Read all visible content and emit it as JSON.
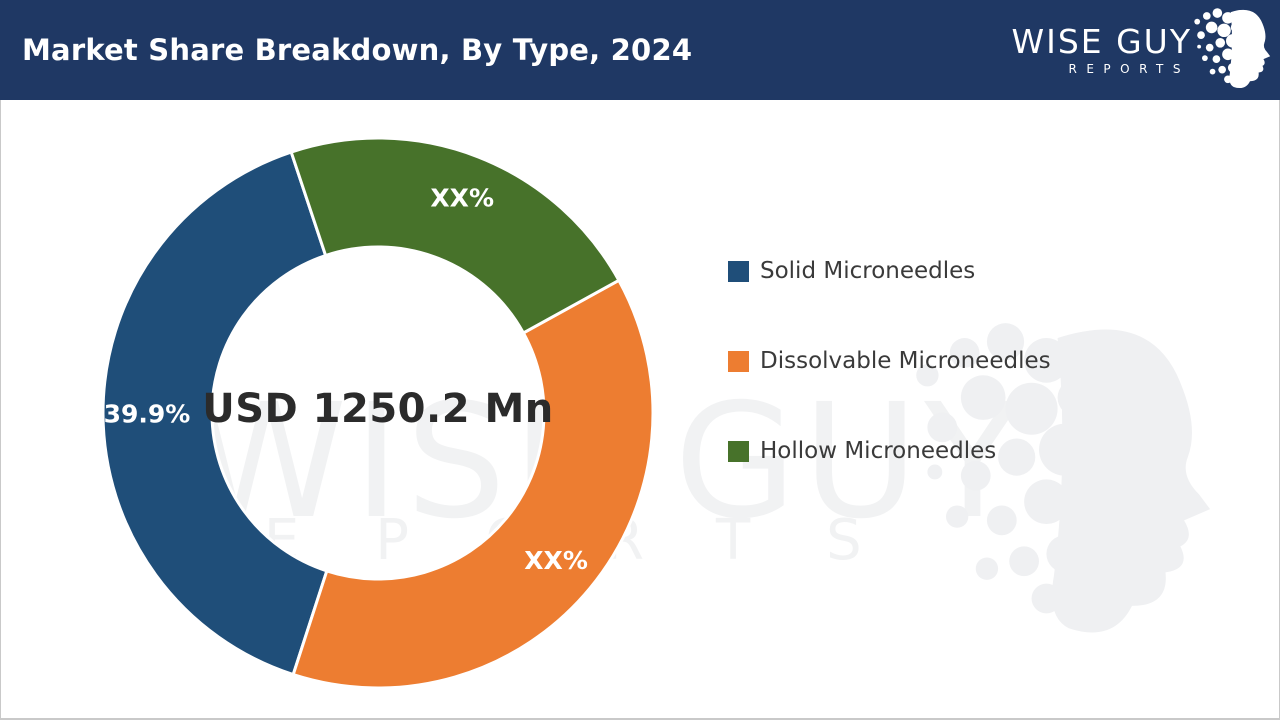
{
  "header": {
    "title": "Market Share Breakdown, By Type, 2024",
    "background_color": "#1f3864",
    "logo": {
      "line1": "WISE GUY",
      "line2": "REPORTS"
    }
  },
  "watermark": {
    "brand": "WISE GUY",
    "sub": "REPORTS"
  },
  "chart_data": {
    "type": "pie",
    "subtype": "donut",
    "title": "Market Share Breakdown, By Type, 2024",
    "center_label": "USD 1250.2 Mn",
    "total_value": "USD 1250.2 Mn",
    "legend_position": "right",
    "start_angle_deg": 341.6,
    "direction": "counterclockwise",
    "slices": [
      {
        "name": "Solid Microneedles",
        "color": "#1f4e79",
        "label": "39.9%",
        "arc_pct_est": 39.9
      },
      {
        "name": "Dissolvable Microneedles",
        "color": "#ed7d31",
        "label": "XX%",
        "arc_pct_est": 38.0
      },
      {
        "name": "Hollow Microneedles",
        "color": "#47722a",
        "label": "XX%",
        "arc_pct_est": 22.1
      }
    ]
  }
}
